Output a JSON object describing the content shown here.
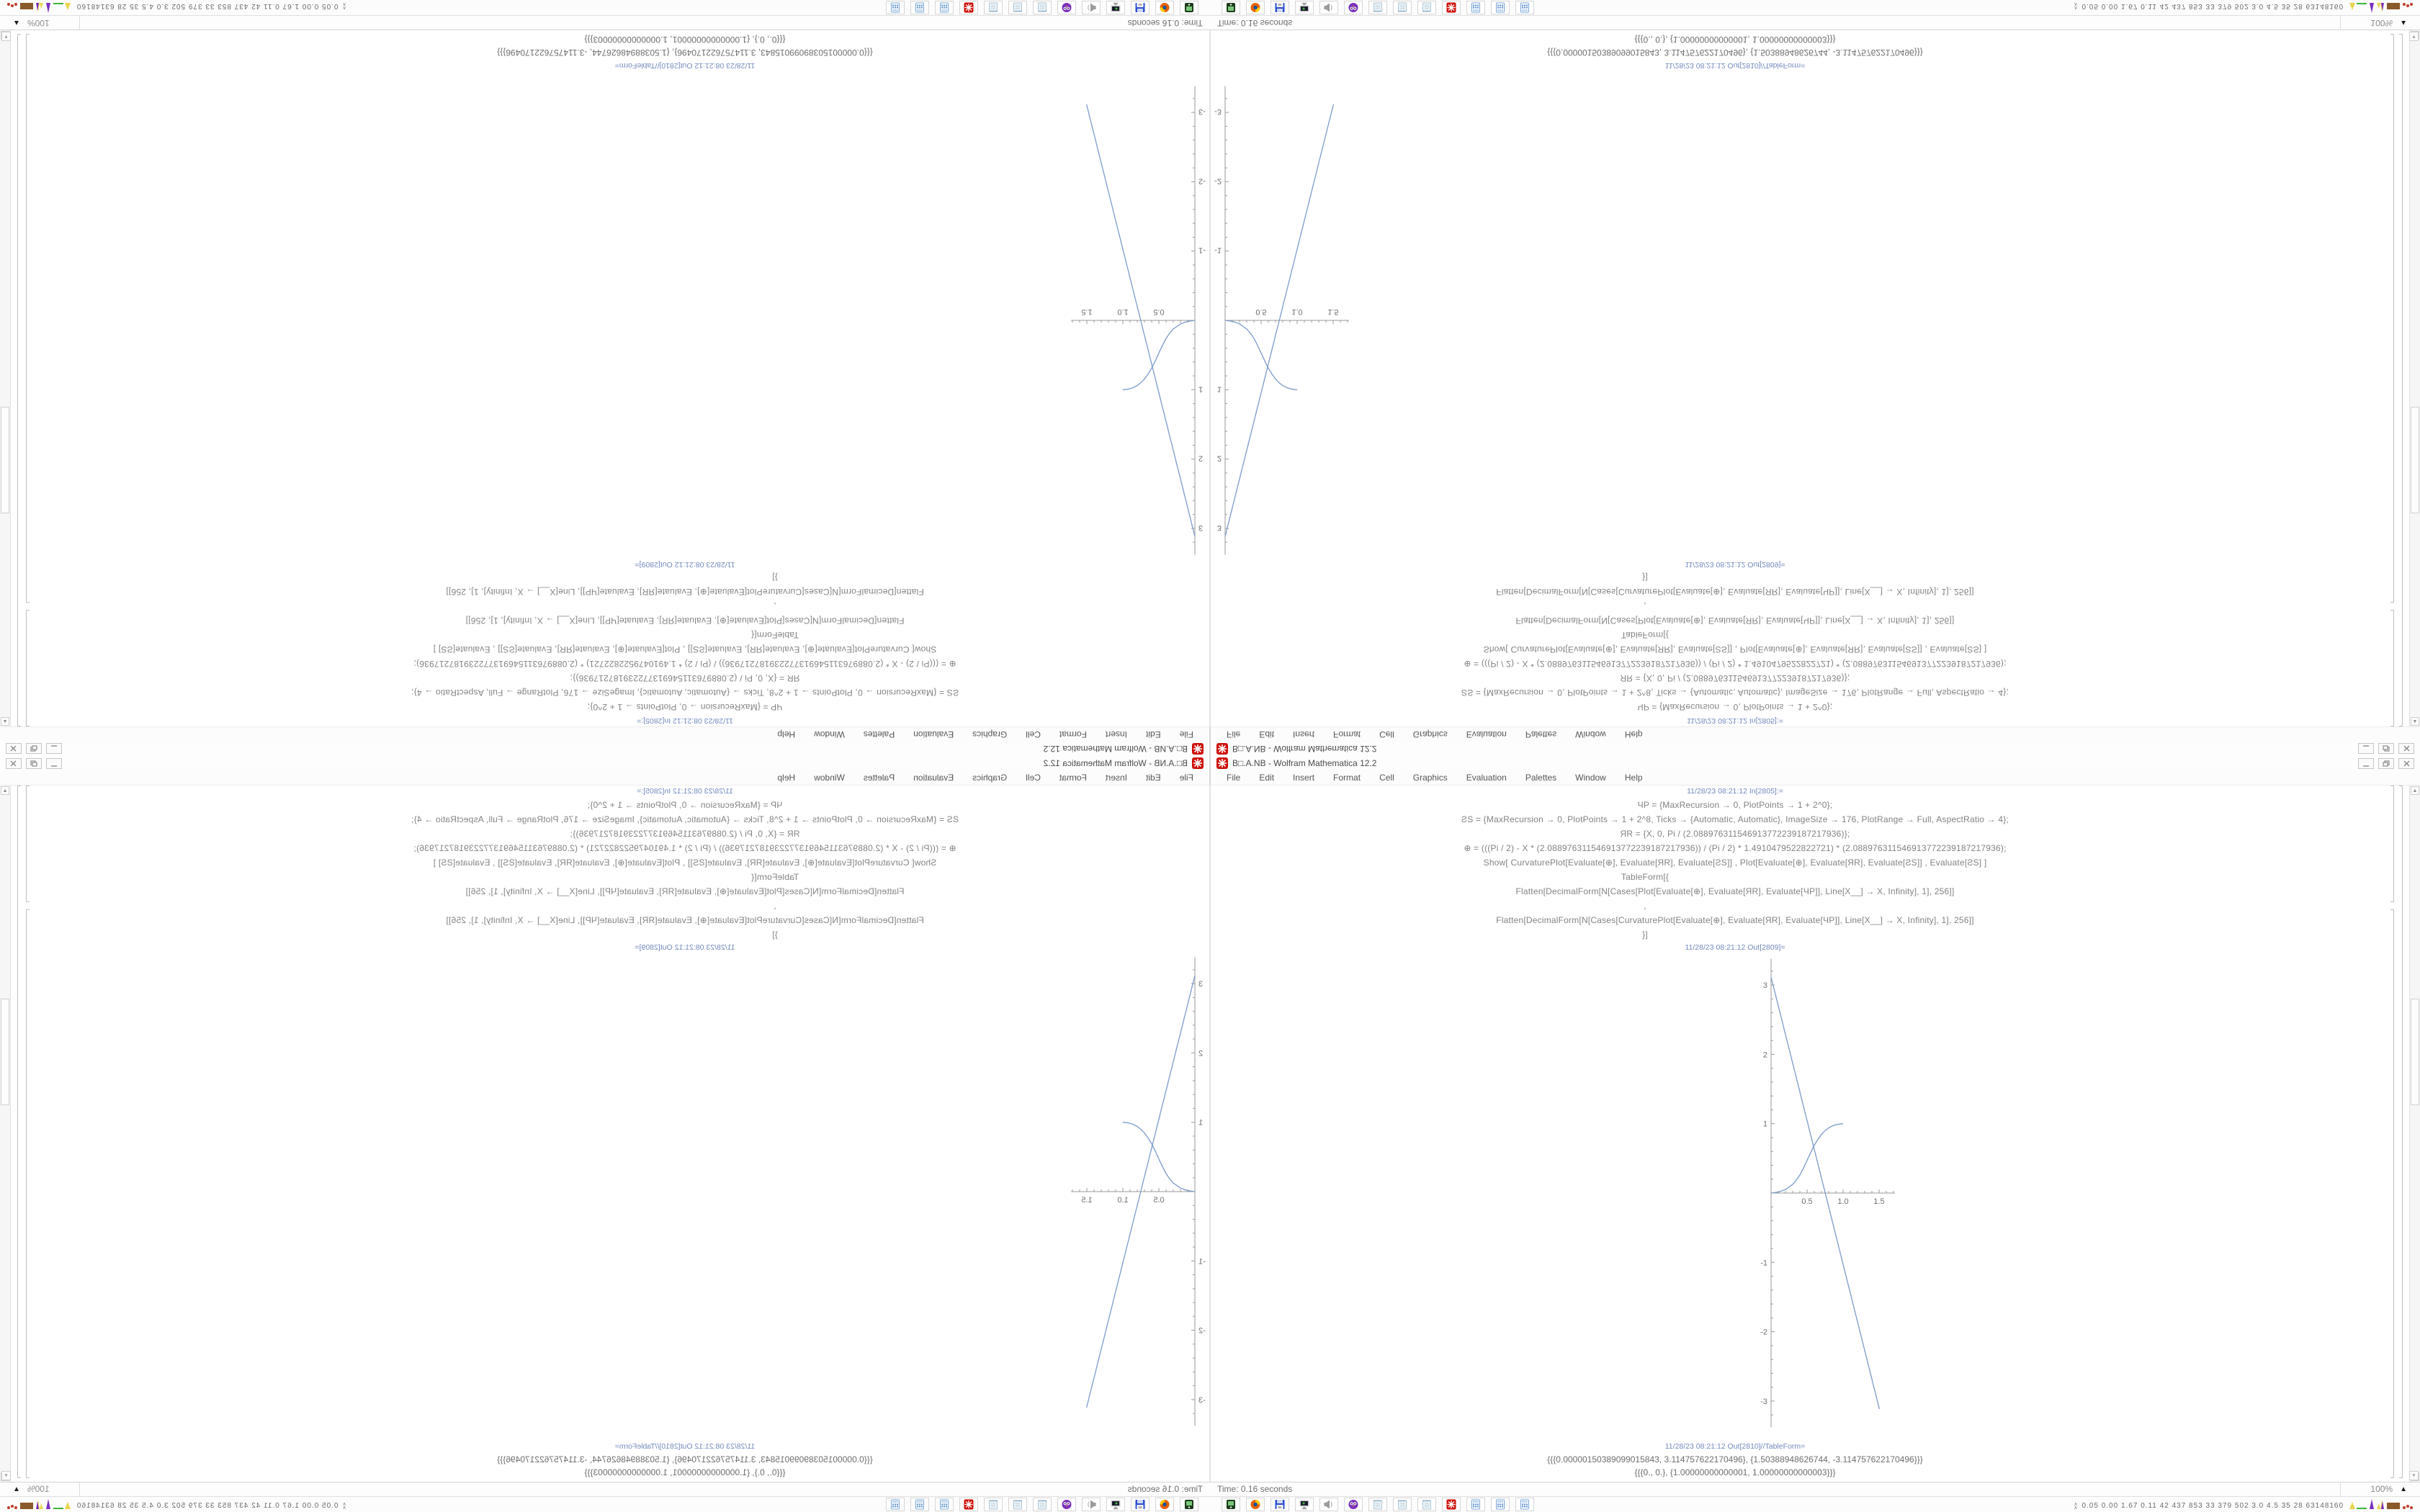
{
  "window": {
    "title": "B□.A.NB - Wolfram Mathematica 12.2",
    "app_icon": "mathematica-red-gear",
    "menu": [
      "File",
      "Edit",
      "Insert",
      "Format",
      "Cell",
      "Graphics",
      "Evaluation",
      "Palettes",
      "Window",
      "Help"
    ],
    "controls": [
      "minimize",
      "restore",
      "close"
    ]
  },
  "notebook": {
    "in_label": "11/28/23 08:21:12 In[2805]:=",
    "code_lines": [
      "ЧP = {MaxRecursion → 0, PlotPoints → 1 + 2^0};",
      "ƧS = {MaxRecursion → 0, PlotPoints → 1 + 2^8, Ticks → {Automatic, Automatic}, ImageSize → 176, PlotRange → Full, AspectRatio → 4};",
      "ЯR = {X, 0, Pi / (2.088976311546913772239187217936)};",
      "⊕ = (((Pi / 2) - X * (2.088976311546913772239187217936)) / (Pi / 2) * 1.4910479522822721) * (2.088976311546913772239187217936);",
      "Show[   CurvaturePlot[Evaluate[⊕], Evaluate[ЯR], Evaluate[ƧS]]   ,   Plot[Evaluate[⊕], Evaluate[ЯR], Evaluate[ƧS]]   ,   Evaluate[ƧS]   ]",
      "TableForm[{",
      "Flatten[DecimalForm[N[Cases[Plot[Evaluate[⊕], Evaluate[ЯR], Evaluate[ЧP]], Line[X__] → X, Infinity], 1], 256]]",
      ",",
      "Flatten[DecimalForm[N[Cases[CurvaturePlot[Evaluate[⊕], Evaluate[ЯR], Evaluate[ЧP]], Line[X__] → X, Infinity], 1], 256]]",
      "}]"
    ],
    "out_label": "11/28/23 08:21:12 Out[2809]=",
    "table_label": "11/28/23 08:21:12 Out[2810]//TableForm=",
    "table_rows": [
      "{{{0.00000150389099015843, 3.114757622170496}, {1.50388948626744, -3.114757622170496}}}",
      "{{{0., 0.}, {1.00000000000001, 1.00000000000003}}}"
    ]
  },
  "status": {
    "time": "Time: 0.16 seconds",
    "zoom": "100%",
    "zoom_triangle": "▲"
  },
  "taskbar": {
    "launchers": [
      "green-device",
      "firefox",
      "floppy-disk",
      "monitor",
      "speaker",
      "owl",
      "notepad",
      "notepad",
      "notepad",
      "mathematica-gear",
      "calculator",
      "calculator",
      "calculator"
    ],
    "sysmon_text": "0.05 0.00 1.67 0.11   42   437   853   33   379   502   3.0   4.5   35   28 63148160",
    "sysmon_graph_colors": [
      "#e8d44d",
      "#3db53d",
      "#7b2fbe",
      "#8a5a2a",
      "#c0392b"
    ]
  },
  "chart_data": {
    "type": "line",
    "title": "",
    "xlabel": "",
    "ylabel": "",
    "xlim": [
      0,
      1.72
    ],
    "ylim": [
      -3.38,
      3.38
    ],
    "x_ticks": [
      0.5,
      1.0,
      1.5
    ],
    "y_ticks": [
      3,
      2,
      1,
      -1,
      -2,
      -3
    ],
    "axis_color": "#9a9a9a",
    "tick_label_color": "#6f6f6f",
    "series": [
      {
        "name": "Plot[⊕]",
        "color": "#7b9bc8",
        "points": [
          [
            0,
            3.1148
          ],
          [
            1.5039,
            -3.1148
          ]
        ]
      },
      {
        "name": "CurvaturePlot[⊕]",
        "color": "#7b9bc8",
        "points": [
          [
            0,
            0
          ],
          [
            0.1,
            0.013
          ],
          [
            0.2,
            0.05
          ],
          [
            0.3,
            0.125
          ],
          [
            0.35,
            0.185
          ],
          [
            0.4,
            0.26
          ],
          [
            0.45,
            0.36
          ],
          [
            0.5,
            0.47
          ],
          [
            0.55,
            0.585
          ],
          [
            0.6,
            0.69
          ],
          [
            0.65,
            0.775
          ],
          [
            0.7,
            0.845
          ],
          [
            0.75,
            0.9
          ],
          [
            0.8,
            0.94
          ],
          [
            0.85,
            0.967
          ],
          [
            0.9,
            0.985
          ],
          [
            0.95,
            0.995
          ],
          [
            1.0,
            1.0
          ]
        ]
      }
    ],
    "legend": "off",
    "grid": "off"
  },
  "quadrants": "screen mirrored horizontally (left) and vertically (top)"
}
